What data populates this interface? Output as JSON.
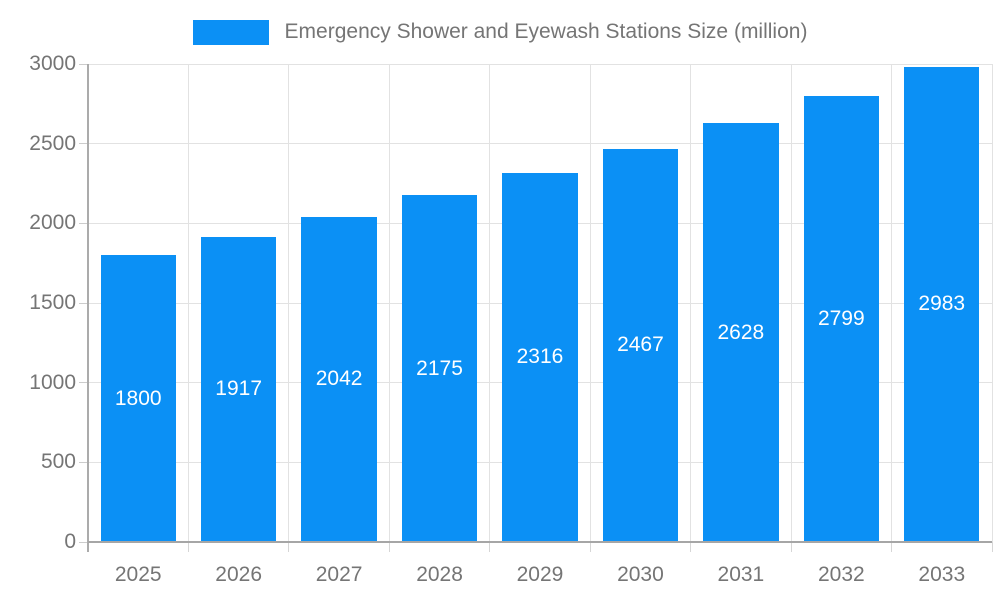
{
  "legend": {
    "label": "Emergency Shower and Eyewash Stations Size (million)"
  },
  "chart_data": {
    "type": "bar",
    "title": "Emergency Shower and Eyewash Stations Size (million)",
    "series_name": "Emergency Shower and Eyewash Stations Size (million)",
    "categories": [
      "2025",
      "2026",
      "2027",
      "2028",
      "2029",
      "2030",
      "2031",
      "2032",
      "2033"
    ],
    "values": [
      1800,
      1917,
      2042,
      2175,
      2316,
      2467,
      2628,
      2799,
      2983
    ],
    "xlabel": "",
    "ylabel": "",
    "ylim": [
      0,
      3000
    ],
    "yticks": [
      0,
      500,
      1000,
      1500,
      2000,
      2500,
      3000
    ],
    "grid": true,
    "legend_position": "top",
    "bar_color": "#0b90f5",
    "value_label_color": "#ffffff",
    "axis_text_color": "#757575",
    "gridline_color": "#e2e2e2",
    "axis_line_color": "#a6a6a6"
  }
}
